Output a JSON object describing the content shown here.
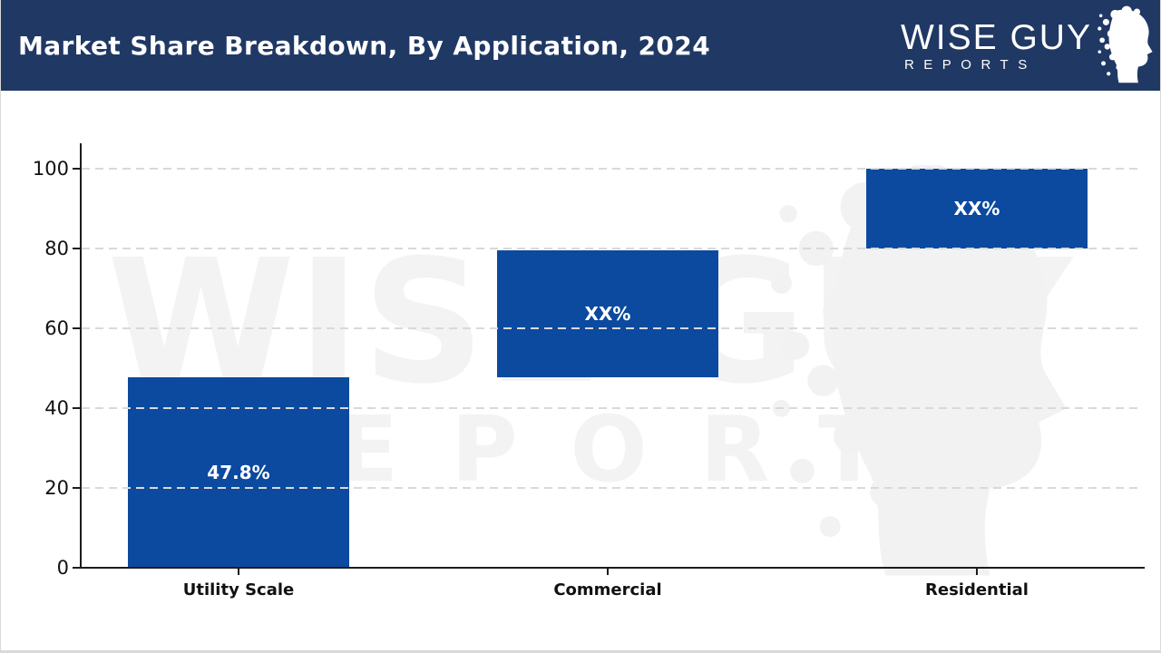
{
  "header": {
    "title": "Market Share Breakdown, By Application, 2024",
    "background_color": "#203864",
    "logo": {
      "wordmark": "WISE GUY",
      "subtitle": "REPORTS"
    }
  },
  "watermark": {
    "wordmark": "WISE GUY",
    "subtitle": "REPORTS"
  },
  "chart_data": {
    "type": "bar",
    "subtype": "floating-waterfall",
    "title": "Market Share Breakdown, By Application, 2024",
    "categories": [
      "Utility Scale",
      "Commercial",
      "Residential"
    ],
    "segments": [
      {
        "category": "Utility Scale",
        "start": 0,
        "end": 47.8,
        "label": "47.8%"
      },
      {
        "category": "Commercial",
        "start": 47.8,
        "end": 79.5,
        "label": "XX%"
      },
      {
        "category": "Residential",
        "start": 80,
        "end": 100,
        "label": "XX%"
      }
    ],
    "xlabel": "",
    "ylabel": "",
    "ylim": [
      0,
      106
    ],
    "yticks": [
      0,
      20,
      40,
      60,
      80,
      100
    ],
    "grid": "horizontal-dashed",
    "legend": "none",
    "bar_color": "#0b4a9e",
    "bar_label_color": "#ffffff",
    "axis_color": "#1c1c1c",
    "grid_color": "#d9d9d9",
    "tick_label_color": "#111111"
  }
}
